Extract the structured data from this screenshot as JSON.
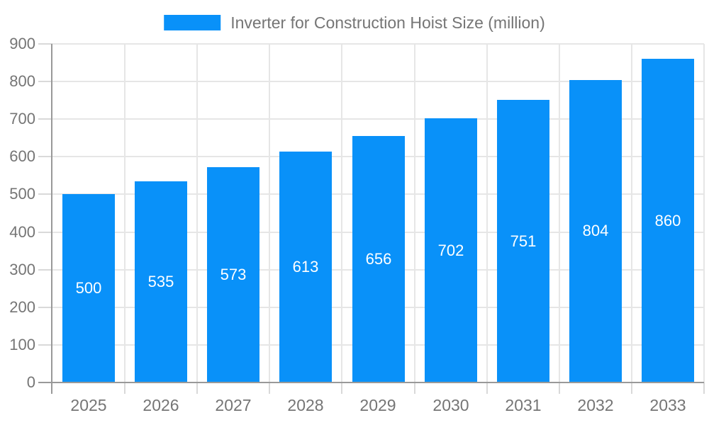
{
  "chart_data": {
    "type": "bar",
    "title": "Inverter for Construction Hoist Size (million)",
    "categories": [
      "2025",
      "2026",
      "2027",
      "2028",
      "2029",
      "2030",
      "2031",
      "2032",
      "2033"
    ],
    "values": [
      500,
      535,
      573,
      613,
      656,
      702,
      751,
      804,
      860
    ],
    "value_labels": [
      "500",
      "535",
      "573",
      "613",
      "656",
      "702",
      "751",
      "804",
      "860"
    ],
    "y_tick_labels": [
      "0",
      "100",
      "200",
      "300",
      "400",
      "500",
      "600",
      "700",
      "800",
      "900"
    ],
    "xlabel": "",
    "ylabel": "",
    "ylim": [
      0,
      900
    ],
    "ytick_interval": 100,
    "grid": true,
    "legend_position": "top-center",
    "colors": {
      "bar": "#0991f9",
      "value_label": "#ffffff",
      "axis": "#999999",
      "gridline": "#e6e6e6",
      "tick": "#d9d9d9",
      "text": "#757575"
    }
  }
}
